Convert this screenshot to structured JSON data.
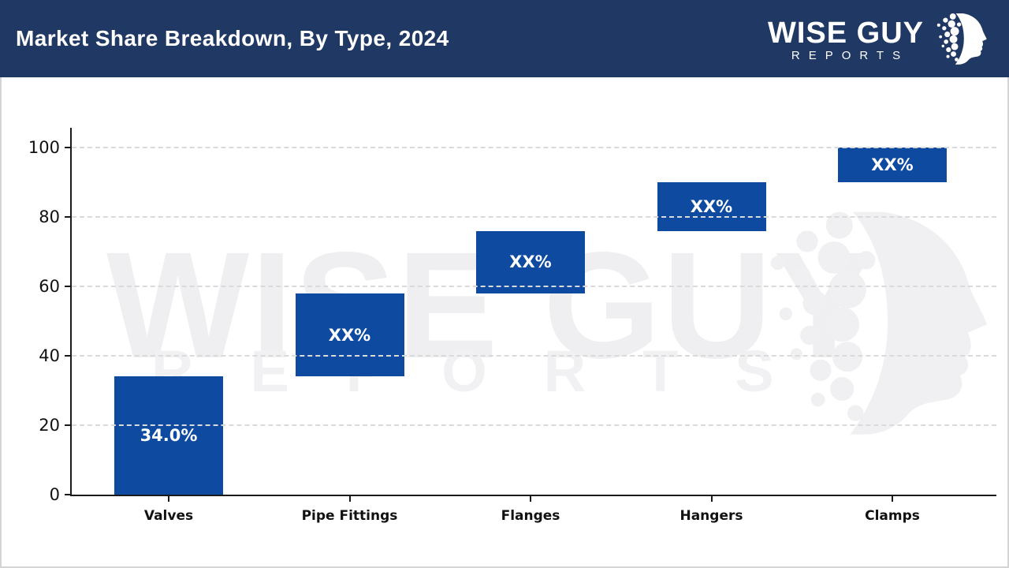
{
  "header": {
    "title": "Market Share Breakdown, By Type, 2024",
    "logo": {
      "wordmark": "WISE GUY",
      "subtext": "REPORTS",
      "icon": "wiseguy-face-icon"
    }
  },
  "watermark": {
    "wordmark": "WISE GUY",
    "subtext": "REPORTS",
    "icon": "wiseguy-face-watermark-icon"
  },
  "colors": {
    "header_bg": "#203864",
    "bar": "#0d4aa0",
    "bar_label": "#ffffff",
    "gridline": "#dadada",
    "axis": "#1a1a1a",
    "watermark": "#efeff1",
    "border": "#d4d4d6"
  },
  "chart_data": {
    "type": "bar",
    "variant": "waterfall",
    "title": "Market Share Breakdown, By Type, 2024",
    "xlabel": "",
    "ylabel": "",
    "ylim": [
      0,
      100
    ],
    "yticks": [
      0,
      20,
      40,
      60,
      80,
      100
    ],
    "grid": "horizontal-dashed",
    "legend": "none",
    "categories": [
      "Valves",
      "Pipe Fittings",
      "Flanges",
      "Hangers",
      "Clamps"
    ],
    "segments": [
      {
        "category": "Valves",
        "start": 0,
        "end": 34,
        "value_pct": 34.0,
        "label": "34.0%"
      },
      {
        "category": "Pipe Fittings",
        "start": 34,
        "end": 58,
        "value_pct": 24.0,
        "label": "XX%"
      },
      {
        "category": "Flanges",
        "start": 58,
        "end": 76,
        "value_pct": 18.0,
        "label": "XX%"
      },
      {
        "category": "Hangers",
        "start": 76,
        "end": 90,
        "value_pct": 14.0,
        "label": "XX%"
      },
      {
        "category": "Clamps",
        "start": 90,
        "end": 100,
        "value_pct": 10.0,
        "label": "XX%"
      }
    ],
    "bar_color": "#0d4aa0",
    "label_color": "#ffffff"
  }
}
